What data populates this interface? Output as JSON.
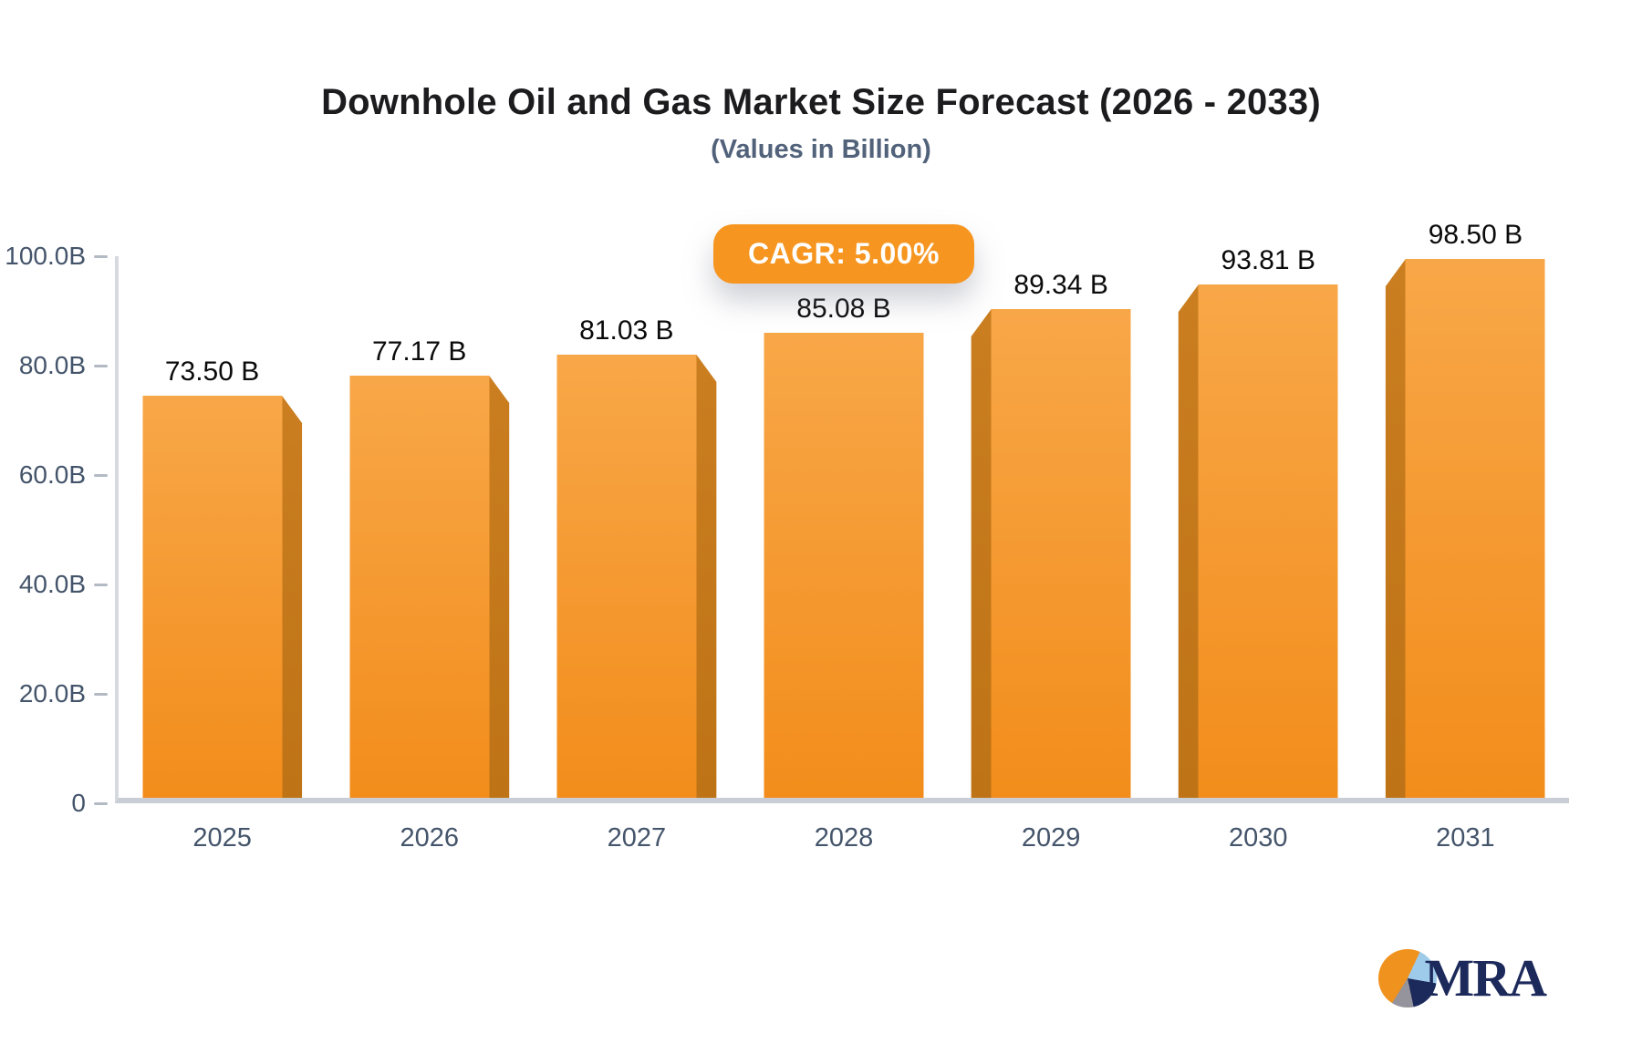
{
  "title": "Downhole Oil and Gas Market Size Forecast (2026 - 2033)",
  "subtitle": "(Values in Billion)",
  "badge": {
    "label": "CAGR: 5.00%"
  },
  "chart_data": {
    "type": "bar",
    "title": "Downhole Oil and Gas Market Size Forecast (2026 - 2033)",
    "subtitle": "(Values in Billion)",
    "categories": [
      "2025",
      "2026",
      "2027",
      "2028",
      "2029",
      "2030",
      "2031"
    ],
    "values": [
      73.5,
      77.17,
      81.03,
      85.08,
      89.34,
      93.81,
      98.5
    ],
    "value_labels": [
      "73.50 B",
      "77.17 B",
      "81.03 B",
      "85.08 B",
      "89.34 B",
      "93.81 B",
      "98.50 B"
    ],
    "xlabel": "",
    "ylabel": "",
    "ylim": [
      0,
      100
    ],
    "yticks": [
      {
        "value": 0,
        "label": "0"
      },
      {
        "value": 20,
        "label": "20.0B"
      },
      {
        "value": 40,
        "label": "40.0B"
      },
      {
        "value": 60,
        "label": "60.0B"
      },
      {
        "value": 80,
        "label": "80.0B"
      },
      {
        "value": 100,
        "label": "100.0B"
      }
    ],
    "grid": false,
    "legend": false,
    "annotation": "CAGR: 5.00%"
  },
  "logo": {
    "text": "MRA"
  },
  "colors": {
    "bar_top": "#F8A748",
    "bar_bottom": "#F28D1B",
    "bar_side": "#BE7316",
    "badge_bg": "#F6951F",
    "axis_line": "#D6DAE0",
    "baseline": "#C9CED6",
    "tick_text": "#44546A",
    "title_text": "#1C1C1E",
    "subtitle_text": "#51627A",
    "value_text": "#0B0B0C",
    "logo_navy": "#1C2A5B",
    "logo_orange": "#F0921E",
    "logo_lightblue": "#9FCBEA",
    "logo_gray": "#95939B"
  }
}
